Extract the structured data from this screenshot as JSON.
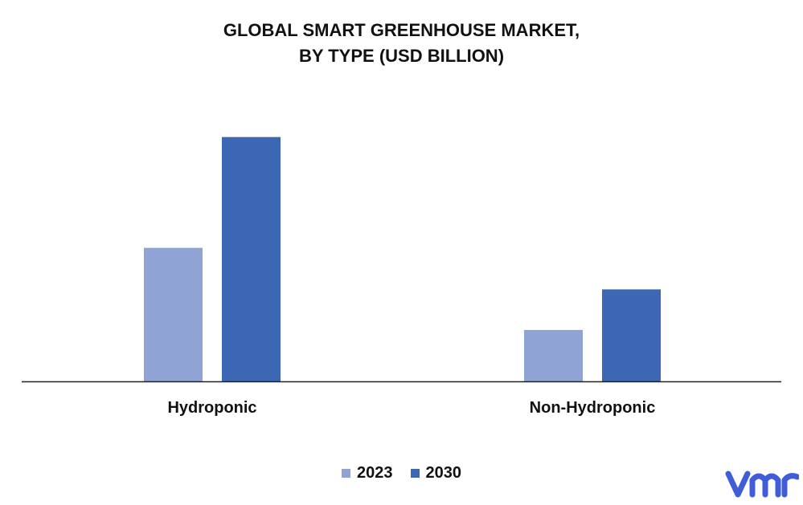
{
  "title_line1": "GLOBAL SMART GREENHOUSE MARKET,",
  "title_line2": "BY TYPE (USD BILLION)",
  "colors": {
    "series_2023": "#8fa3d4",
    "series_2030": "#3c67b4",
    "axis": "#222222",
    "logo": "#3f5dd6"
  },
  "logo": {
    "text": "vmr",
    "icon": "vmr-logo"
  },
  "chart_data": {
    "type": "bar",
    "categories": [
      "Hydroponic",
      "Non-Hydroponic"
    ],
    "series": [
      {
        "name": "2023",
        "values": [
          1.35,
          0.52
        ]
      },
      {
        "name": "2030",
        "values": [
          2.47,
          0.93
        ]
      }
    ],
    "title": "GLOBAL SMART GREENHOUSE MARKET, BY TYPE (USD BILLION)",
    "xlabel": "",
    "ylabel": "",
    "ylim": [
      0,
      2.5
    ],
    "grid": false,
    "legend_position": "bottom"
  }
}
